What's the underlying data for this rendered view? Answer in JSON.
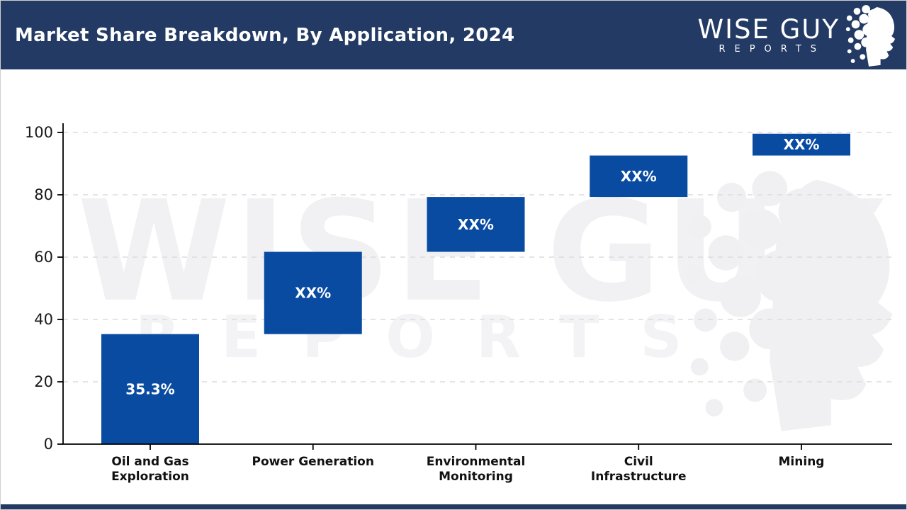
{
  "header": {
    "title": "Market Share Breakdown, By Application, 2024",
    "logo": {
      "name": "WISE GUY",
      "subtitle": "REPORTS"
    }
  },
  "watermark": {
    "line1": "WISE GUY",
    "line2": "REPORTS"
  },
  "chart_data": {
    "type": "bar",
    "variant": "floating-segment-waterfall",
    "title": "Market Share Breakdown, By Application, 2024",
    "categories": [
      {
        "name": "Oil and Gas Exploration",
        "lines": [
          "Oil and Gas",
          "Exploration"
        ]
      },
      {
        "name": "Power Generation",
        "lines": [
          "Power Generation"
        ]
      },
      {
        "name": "Environmental Monitoring",
        "lines": [
          "Environmental",
          "Monitoring"
        ]
      },
      {
        "name": "Civil Infrastructure",
        "lines": [
          "Civil",
          "Infrastructure"
        ]
      },
      {
        "name": "Mining",
        "lines": [
          "Mining"
        ]
      }
    ],
    "series": [
      {
        "name": "Oil and Gas Exploration",
        "start": 0,
        "end": 35.3,
        "label": "35.3%"
      },
      {
        "name": "Power Generation",
        "start": 35.3,
        "end": 61.7,
        "label": "XX%"
      },
      {
        "name": "Environmental Monitoring",
        "start": 61.7,
        "end": 79.3,
        "label": "XX%"
      },
      {
        "name": "Civil Infrastructure",
        "start": 79.3,
        "end": 92.6,
        "label": "XX%"
      },
      {
        "name": "Mining",
        "start": 92.6,
        "end": 99.6,
        "label": "XX%"
      }
    ],
    "yticks": [
      0,
      20,
      40,
      60,
      80,
      100
    ],
    "ylim": [
      0,
      105
    ],
    "xlabel": "",
    "ylabel": "",
    "legend": "none",
    "grid": {
      "horizontal": true,
      "style": "dashed"
    },
    "colors": {
      "bar": "#0A4BA2",
      "bar_label": "#ffffff",
      "axis": "#000000",
      "grid": "#dcdcdc",
      "header_bg": "#223A64",
      "watermark": "#f1f1f3"
    }
  }
}
